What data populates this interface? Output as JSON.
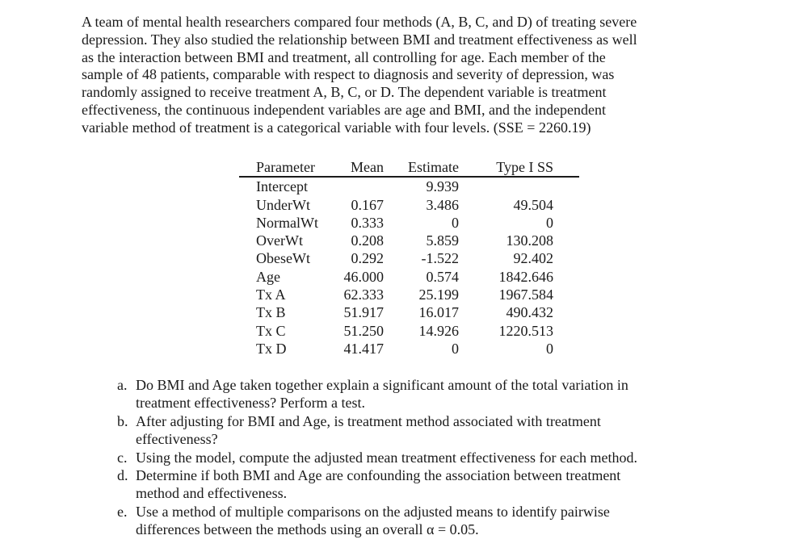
{
  "page": {
    "background": "#ffffff",
    "text_color": "#1a1a1a"
  },
  "intro": {
    "lines": [
      "A team of mental health researchers compared four methods (A, B, C, and D) of treating severe",
      "depression. They also studied the relationship between BMI and treatment effectiveness as well",
      "as the interaction between BMI and treatment, all controlling for age. Each member of the",
      "sample of 48 patients, comparable with respect to diagnosis and severity of depression, was",
      "randomly assigned to receive treatment A, B, C, or D. The dependent variable is treatment",
      "effectiveness, the continuous independent variables are age and BMI, and the independent",
      "variable method of treatment is a categorical variable with four levels. (SSE = 2260.19)"
    ],
    "sse_value": "2260.19"
  },
  "table": {
    "headers": [
      "Parameter",
      "Mean",
      "Estimate",
      "Type I SS"
    ],
    "rows": [
      {
        "parameter": "Intercept",
        "mean": "",
        "estimate": "9.939",
        "type_i_ss": ""
      },
      {
        "parameter": "UnderWt",
        "mean": "0.167",
        "estimate": "3.486",
        "type_i_ss": "49.504"
      },
      {
        "parameter": "NormalWt",
        "mean": "0.333",
        "estimate": "0",
        "type_i_ss": "0"
      },
      {
        "parameter": "OverWt",
        "mean": "0.208",
        "estimate": "5.859",
        "type_i_ss": "130.208"
      },
      {
        "parameter": "ObeseWt",
        "mean": "0.292",
        "estimate": "-1.522",
        "type_i_ss": "92.402"
      },
      {
        "parameter": "Age",
        "mean": "46.000",
        "estimate": "0.574",
        "type_i_ss": "1842.646"
      },
      {
        "parameter": "Tx A",
        "mean": "62.333",
        "estimate": "25.199",
        "type_i_ss": "1967.584"
      },
      {
        "parameter": "Tx B",
        "mean": "51.917",
        "estimate": "16.017",
        "type_i_ss": "490.432"
      },
      {
        "parameter": "Tx C",
        "mean": "51.250",
        "estimate": "14.926",
        "type_i_ss": "1220.513"
      },
      {
        "parameter": "Tx D",
        "mean": "41.417",
        "estimate": "0",
        "type_i_ss": "0"
      }
    ]
  },
  "questions": {
    "items": [
      {
        "label": "a.",
        "lines": [
          "Do BMI and Age taken together explain a significant amount of the total variation in",
          "treatment effectiveness? Perform a test."
        ]
      },
      {
        "label": "b.",
        "lines": [
          "After adjusting for BMI and Age, is treatment method associated with treatment",
          "effectiveness?"
        ]
      },
      {
        "label": "c.",
        "lines": [
          "Using the model, compute the adjusted mean treatment effectiveness for each method."
        ]
      },
      {
        "label": "d.",
        "lines": [
          "Determine if both BMI and Age are confounding the association between treatment",
          "method and effectiveness."
        ]
      },
      {
        "label": "e.",
        "lines": [
          "Use a method of multiple comparisons on the adjusted means to identify pairwise",
          "differences between the methods using an overall α = 0.05."
        ]
      }
    ]
  }
}
